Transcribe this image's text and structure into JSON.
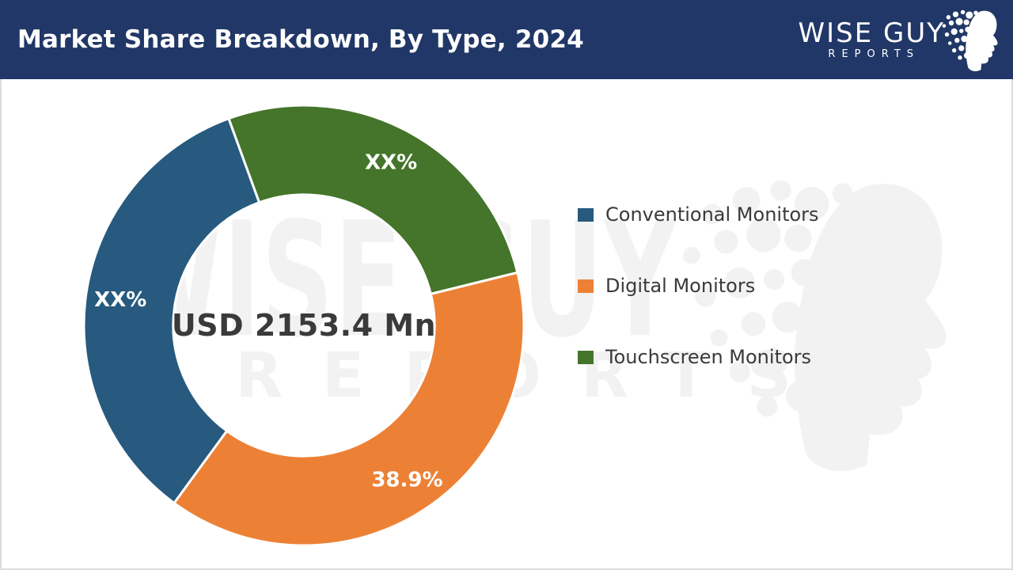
{
  "header": {
    "title": "Market Share Breakdown, By Type, 2024",
    "bg_color": "#213767",
    "logo": {
      "line1": "WISE GUY",
      "line2": "REPORTS"
    }
  },
  "watermark": {
    "line1": "WISE GUY",
    "line2": "REPORTS"
  },
  "chart_data": {
    "type": "pie",
    "subtype": "donut",
    "title": "Market Share Breakdown, By Type, 2024",
    "center_label": "USD 2153.4 Mn",
    "units": "percent of market share",
    "start_angle_deg": 110,
    "direction": "clockwise",
    "inner_radius_ratio": 0.594,
    "label_radius_ratio": 0.842,
    "label_color": "#ffffff",
    "legend_position": "right",
    "slices": [
      {
        "name": "Touchscreen Monitors",
        "value": 26.7,
        "display_label": "XX%",
        "value_redacted_in_image": true,
        "color": "#44752A"
      },
      {
        "name": "Digital Monitors",
        "value": 38.9,
        "display_label": "38.9%",
        "value_redacted_in_image": false,
        "color": "#EC8136"
      },
      {
        "name": "Conventional Monitors",
        "value": 34.4,
        "display_label": "XX%",
        "value_redacted_in_image": true,
        "color": "#275A7E"
      }
    ]
  },
  "legend": {
    "items": [
      {
        "label": "Conventional Monitors",
        "color": "#275A7E"
      },
      {
        "label": "Digital Monitors",
        "color": "#EC8136"
      },
      {
        "label": "Touchscreen Monitors",
        "color": "#44752A"
      }
    ]
  },
  "colors": {
    "header_bg": "#213767",
    "content_bg": "#ffffff",
    "text_dark": "#3a3a3a",
    "watermark": "#f2f2f2",
    "border": "#dcdcdc"
  }
}
